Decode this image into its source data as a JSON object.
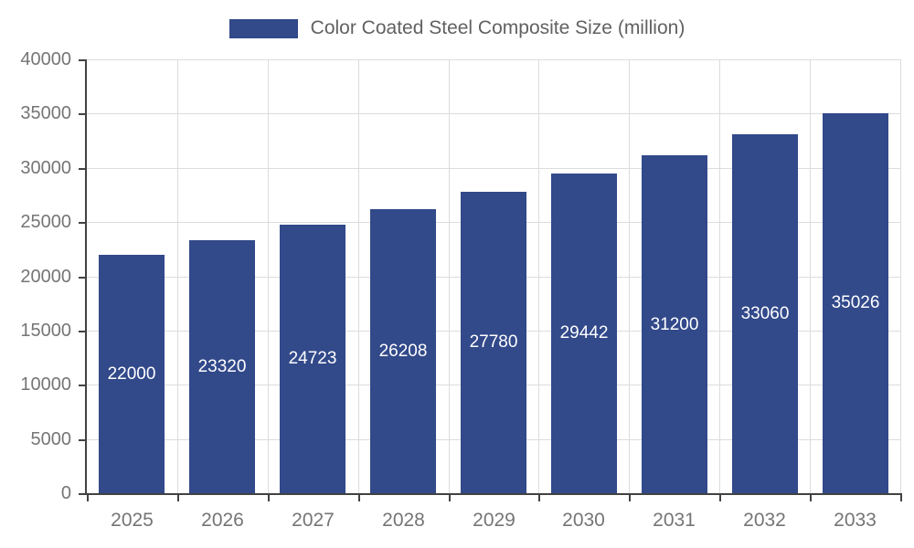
{
  "legend": {
    "label": "Color Coated Steel Composite Size (million)"
  },
  "colors": {
    "bar": "#32498A",
    "grid": "#dcdcdc",
    "axis": "#424242",
    "tick_text": "#757575",
    "legend_text": "#616161",
    "value_text": "#ffffff",
    "background": "#ffffff"
  },
  "chart_data": {
    "type": "bar",
    "title": "Color Coated Steel Composite Size (million)",
    "categories": [
      "2025",
      "2026",
      "2027",
      "2028",
      "2029",
      "2030",
      "2031",
      "2032",
      "2033"
    ],
    "values": [
      22000,
      23320,
      24723,
      26208,
      27780,
      29442,
      31200,
      33060,
      35026
    ],
    "xlabel": "",
    "ylabel": "",
    "ylim": [
      0,
      40000
    ],
    "ytick_step": 5000,
    "ytick_labels": [
      "0",
      "5000",
      "10000",
      "15000",
      "20000",
      "25000",
      "30000",
      "35000",
      "40000"
    ],
    "grid": true,
    "legend_position": "top-center",
    "value_labels": "inside-middle",
    "value_label_color": "#ffffff"
  }
}
